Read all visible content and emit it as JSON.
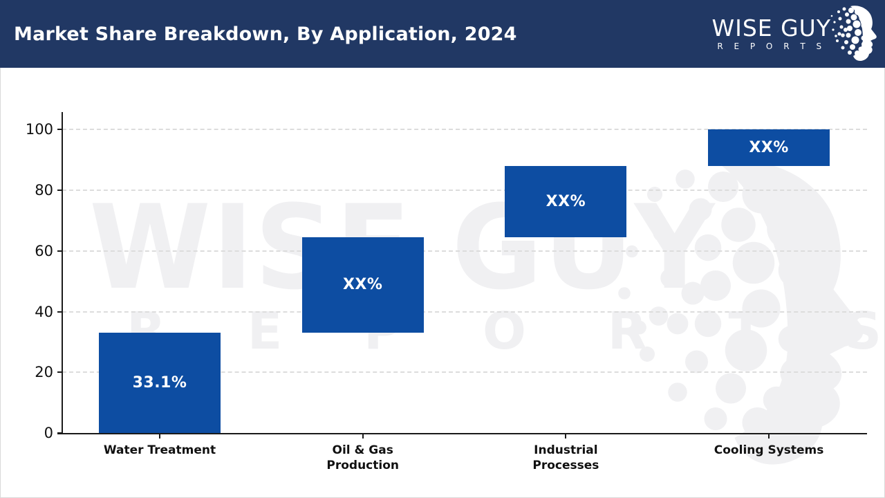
{
  "header": {
    "title": "Market Share Breakdown, By Application, 2024",
    "logo": {
      "line1": "WISE GUY",
      "line2": "R E P O R T S"
    }
  },
  "watermark": {
    "line1": "WISE GUY",
    "line2": "R E P O R T S"
  },
  "chart_data": {
    "type": "bar",
    "subtype": "waterfall",
    "title": "Market Share Breakdown, By Application, 2024",
    "categories": [
      "Water Treatment",
      "Oil & Gas\nProduction",
      "Industrial\nProcesses",
      "Cooling Systems"
    ],
    "bars": [
      {
        "category": "Water Treatment",
        "start": 0,
        "end": 33.1,
        "label": "33.1%"
      },
      {
        "category": "Oil & Gas\nProduction",
        "start": 33.1,
        "end": 64.5,
        "label": "XX%"
      },
      {
        "category": "Industrial\nProcesses",
        "start": 64.5,
        "end": 88.0,
        "label": "XX%"
      },
      {
        "category": "Cooling Systems",
        "start": 88.0,
        "end": 100.0,
        "label": "XX%"
      }
    ],
    "xlabel": "",
    "ylabel": "",
    "ylim": [
      0,
      100
    ],
    "yticks": [
      0,
      20,
      40,
      60,
      80,
      100
    ],
    "grid": "horizontal-dashed",
    "legend": "none"
  },
  "colors": {
    "header_bg": "#213864",
    "bar": "#0d4da2",
    "bar_label": "#ffffff",
    "grid": "#dcdcdc",
    "axis": "#1a1a1a",
    "watermark": "#f0f0f2",
    "border": "#d9d9d9"
  }
}
